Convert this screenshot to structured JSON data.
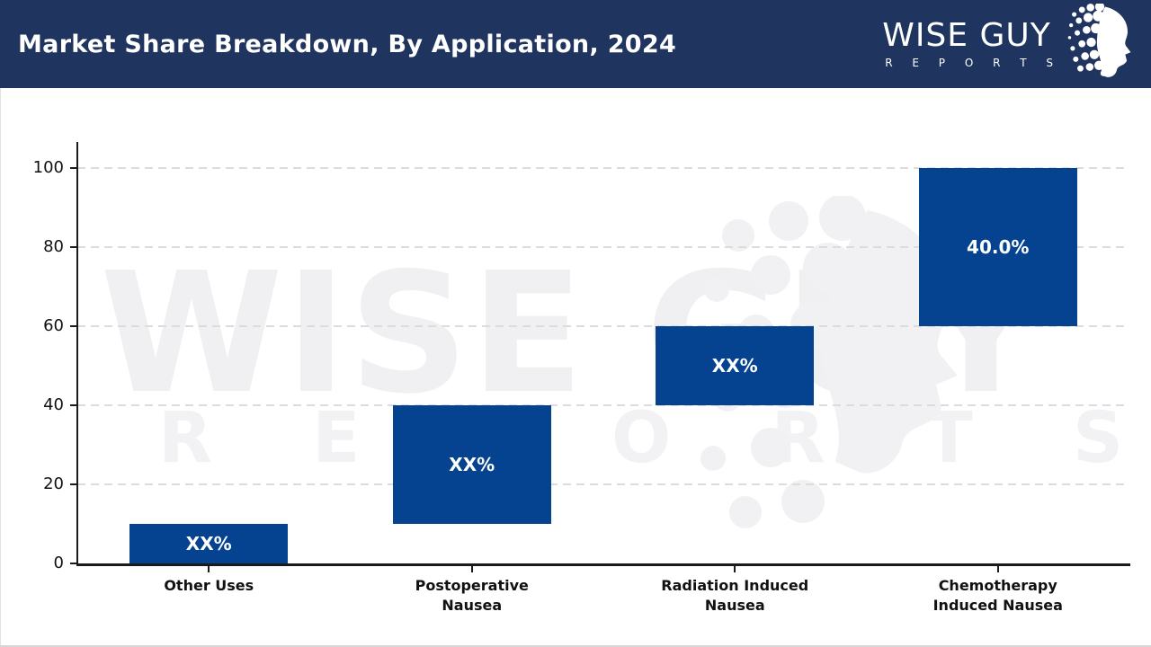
{
  "header": {
    "title": "Market Share Breakdown, By Application, 2024",
    "bg_color": "#1f3560",
    "logo": {
      "wordmark": "WISE GUY",
      "subtext": "R E P O R T S"
    }
  },
  "watermark": {
    "line1": "WISE GUY",
    "line2": "R E P O R T S"
  },
  "chart_data": {
    "type": "bar",
    "variant": "waterfall-floating-bars",
    "title": "Market Share Breakdown, By Application, 2024",
    "categories": [
      "Other Uses",
      "Postoperative\nNausea",
      "Radiation Induced\nNausea",
      "Chemotherapy\nInduced Nausea"
    ],
    "segments": [
      {
        "category": "Other Uses",
        "start": 0,
        "end": 10,
        "label": "XX%"
      },
      {
        "category": "Postoperative Nausea",
        "start": 10,
        "end": 40,
        "label": "XX%"
      },
      {
        "category": "Radiation Induced Nausea",
        "start": 40,
        "end": 60,
        "label": "XX%"
      },
      {
        "category": "Chemotherapy Induced Nausea",
        "start": 60,
        "end": 100,
        "label": "40.0%"
      }
    ],
    "xlabel": "",
    "ylabel": "",
    "ylim": [
      0,
      100
    ],
    "yticks": [
      0,
      20,
      40,
      60,
      80,
      100
    ],
    "grid": {
      "horizontal": true,
      "style": "dashed",
      "color": "#dcdcdc"
    },
    "legend": null,
    "bar_color": "#05428f",
    "bar_label_color": "#ffffff",
    "axis_color": "#1a1a1a"
  }
}
